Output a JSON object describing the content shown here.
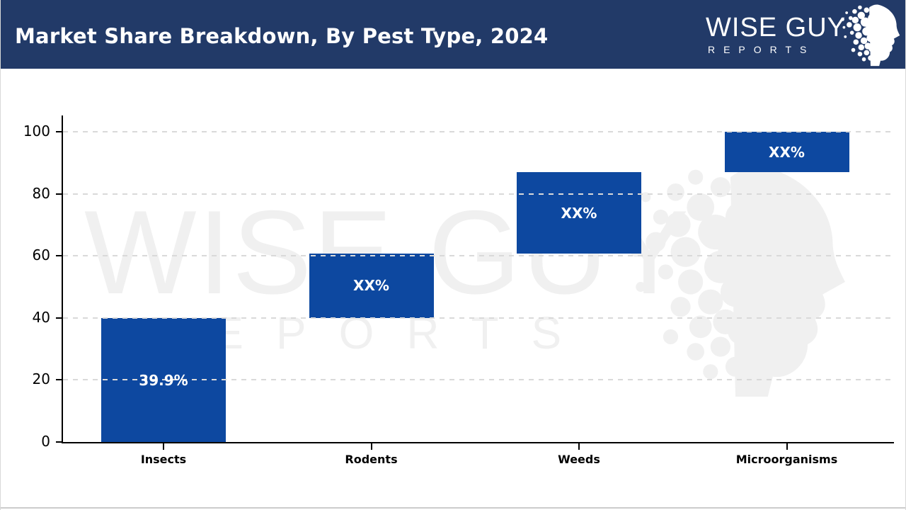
{
  "header": {
    "title": "Market Share Breakdown, By Pest Type, 2024",
    "bg_color": "#223A68",
    "logo": {
      "wordmark": "WISE GUY",
      "reports": "REPORTS"
    }
  },
  "watermark": {
    "wordmark": "WISE GUY",
    "reports": "REPORTS"
  },
  "chart_data": {
    "type": "bar",
    "variant": "waterfall",
    "title": "Market Share Breakdown, By Pest Type, 2024",
    "categories": [
      "Insects",
      "Rodents",
      "Weeds",
      "Microorganisms"
    ],
    "segments": [
      {
        "category": "Insects",
        "start": 0,
        "end": 39.9,
        "label": "39.9%"
      },
      {
        "category": "Rodents",
        "start": 39.9,
        "end": 60.8,
        "label": "XX%"
      },
      {
        "category": "Weeds",
        "start": 60.8,
        "end": 86.9,
        "label": "XX%"
      },
      {
        "category": "Microorganisms",
        "start": 86.9,
        "end": 100,
        "label": "XX%"
      }
    ],
    "values": [
      39.9,
      20.9,
      26.1,
      13.1
    ],
    "yticks": [
      0,
      20,
      40,
      60,
      80,
      100
    ],
    "ylim": [
      0,
      105
    ],
    "xlabel": "",
    "ylabel": "",
    "grid": true,
    "legend": null,
    "bar_color": "#0D48A0",
    "bar_label_color": "#FFFFFF",
    "gridline_color": "#D9D9D9",
    "axis_color": "#000000",
    "tick_label_color": "#000000"
  }
}
